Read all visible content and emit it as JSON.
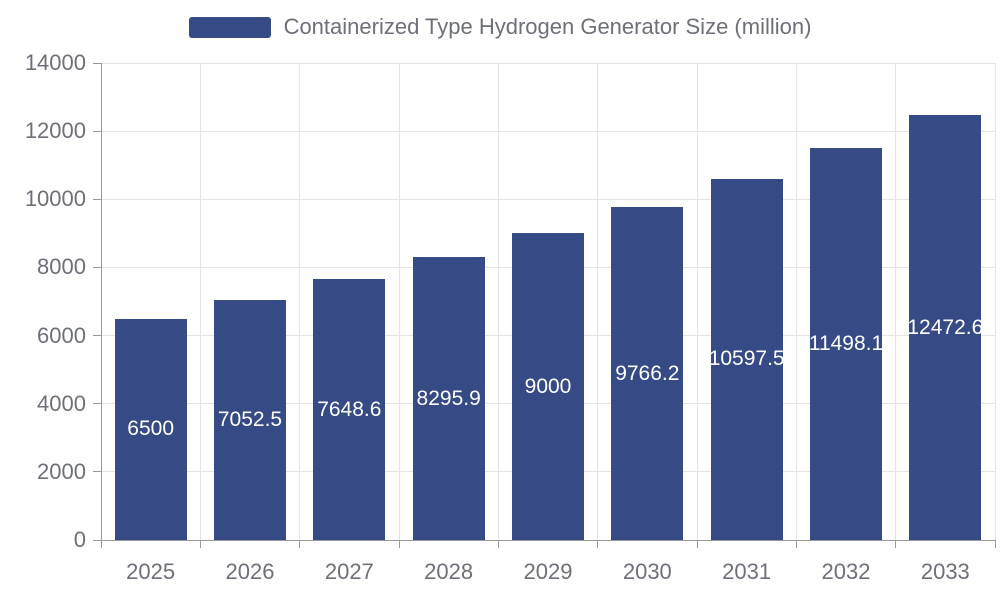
{
  "legend": {
    "items": [
      {
        "label": "Containerized Type Hydrogen Generator Size (million)",
        "color": "#364a85"
      }
    ]
  },
  "chart_data": {
    "type": "bar",
    "title": "Containerized Type Hydrogen Generator Size (million)",
    "series_name": "Containerized Type Hydrogen Generator Size (million)",
    "categories": [
      "2025",
      "2026",
      "2027",
      "2028",
      "2029",
      "2030",
      "2031",
      "2032",
      "2033"
    ],
    "values": [
      6500,
      7052.5,
      7648.6,
      8295.9,
      9000,
      9766.2,
      10597.5,
      11498.1,
      12472.6
    ],
    "value_labels": [
      "6500",
      "7052.5",
      "7648.6",
      "8295.9",
      "9000",
      "9766.2",
      "10597.5",
      "11498.1",
      "12472.6"
    ],
    "xlabel": "",
    "ylabel": "",
    "ylim": [
      0,
      14000
    ],
    "yticks": [
      0,
      2000,
      4000,
      6000,
      8000,
      10000,
      12000,
      14000
    ],
    "grid": true,
    "legend_position": "top",
    "bar_color": "#364a85",
    "bar_label_color": "#ffffff",
    "axis_text_color": "#6e7079",
    "grid_color": "#e4e4e4",
    "axis_line_color": "#999999",
    "background_color": "#ffffff"
  }
}
